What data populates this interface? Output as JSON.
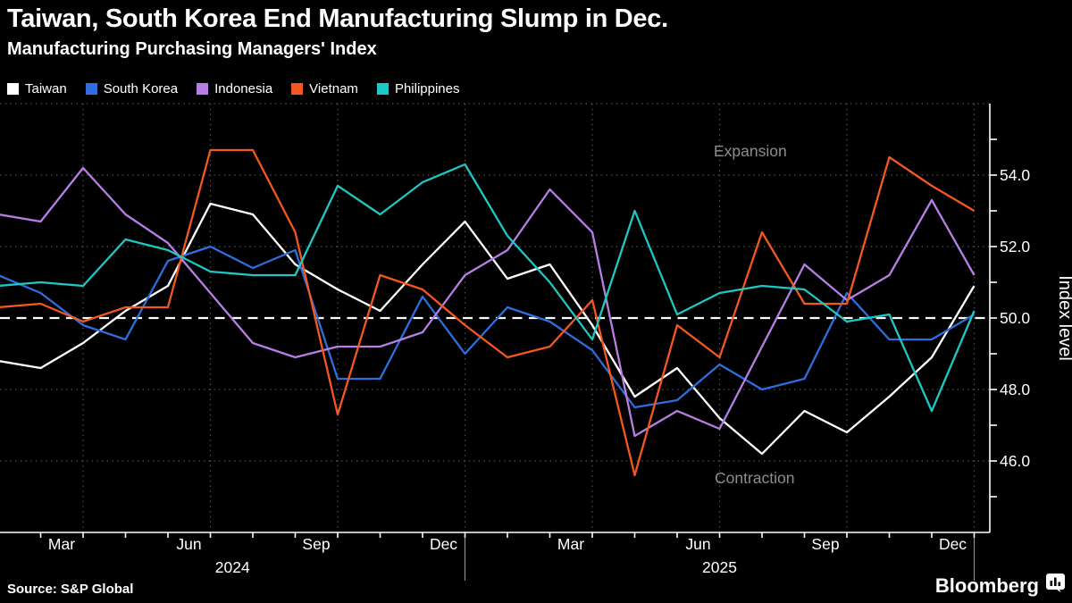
{
  "header": {
    "title": "Taiwan, South Korea End Manufacturing Slump in Dec.",
    "subtitle": "Manufacturing Purchasing Managers' Index"
  },
  "legend": {
    "items": [
      {
        "label": "Taiwan",
        "color": "#FFFFFF"
      },
      {
        "label": "South Korea",
        "color": "#2D6FDF"
      },
      {
        "label": "Indonesia",
        "color": "#B77FE6"
      },
      {
        "label": "Vietnam",
        "color": "#F4581E"
      },
      {
        "label": "Philippines",
        "color": "#1FC8C4"
      }
    ]
  },
  "chart_data": {
    "type": "line",
    "title": "Taiwan, South Korea End Manufacturing Slump in Dec.",
    "subtitle": "Manufacturing Purchasing Managers' Index",
    "ylabel": "Index level",
    "xlabel": "",
    "ylim": [
      44,
      56
    ],
    "grid": "dotted",
    "reference_line_value": 50,
    "categories": [
      "Jan 2024",
      "Feb 2024",
      "Mar 2024",
      "Apr 2024",
      "May 2024",
      "Jun 2024",
      "Jul 2024",
      "Aug 2024",
      "Sep 2024",
      "Oct 2024",
      "Nov 2024",
      "Dec 2024",
      "Jan 2025",
      "Feb 2025",
      "Mar 2025",
      "Apr 2025",
      "May 2025",
      "Jun 2025",
      "Jul 2025",
      "Aug 2025",
      "Sep 2025",
      "Oct 2025",
      "Nov 2025",
      "Dec 2025"
    ],
    "series": [
      {
        "name": "Taiwan",
        "color": "#FFFFFF",
        "values": [
          48.8,
          48.6,
          49.3,
          50.2,
          50.9,
          53.2,
          52.9,
          51.5,
          50.8,
          50.2,
          51.5,
          52.7,
          51.1,
          51.5,
          49.8,
          47.8,
          48.6,
          47.2,
          46.2,
          47.4,
          46.8,
          47.8,
          48.9,
          50.9
        ]
      },
      {
        "name": "South Korea",
        "color": "#2D6FDF",
        "values": [
          51.2,
          50.7,
          49.8,
          49.4,
          51.6,
          52.0,
          51.4,
          51.9,
          48.3,
          48.3,
          50.6,
          49.0,
          50.3,
          49.9,
          49.1,
          47.5,
          47.7,
          48.7,
          48.0,
          48.3,
          50.7,
          49.4,
          49.4,
          50.1
        ]
      },
      {
        "name": "Indonesia",
        "color": "#B77FE6",
        "values": [
          52.9,
          52.7,
          54.2,
          52.9,
          52.1,
          50.7,
          49.3,
          48.9,
          49.2,
          49.2,
          49.6,
          51.2,
          51.9,
          53.6,
          52.4,
          46.7,
          47.4,
          46.9,
          49.2,
          51.5,
          50.5,
          51.2,
          53.3,
          51.2
        ]
      },
      {
        "name": "Vietnam",
        "color": "#F4581E",
        "values": [
          50.3,
          50.4,
          49.9,
          50.3,
          50.3,
          54.7,
          54.7,
          52.4,
          47.3,
          51.2,
          50.8,
          49.8,
          48.9,
          49.2,
          50.5,
          45.6,
          49.8,
          48.9,
          52.4,
          50.4,
          50.4,
          54.5,
          53.7,
          53.0
        ]
      },
      {
        "name": "Philippines",
        "color": "#1FC8C4",
        "values": [
          50.9,
          51.0,
          50.9,
          52.2,
          51.9,
          51.3,
          51.2,
          51.2,
          53.7,
          52.9,
          53.8,
          54.3,
          52.3,
          51.0,
          49.4,
          53.0,
          50.1,
          50.7,
          50.9,
          50.8,
          49.9,
          50.1,
          47.4,
          50.2
        ]
      }
    ],
    "y_ticks": [
      {
        "value": 54,
        "label": "54.0"
      },
      {
        "value": 52,
        "label": "52.0"
      },
      {
        "value": 50,
        "label": "50.0"
      },
      {
        "value": 48,
        "label": "48.0"
      },
      {
        "value": 46,
        "label": "46.0"
      }
    ],
    "y_minor_tick_values": [
      45,
      46,
      47,
      48,
      49,
      50,
      51,
      52,
      53,
      54,
      55
    ],
    "grid_y_values": [
      46,
      48,
      52,
      54,
      56
    ],
    "x_ticks": [
      {
        "index": 2,
        "label": "Mar"
      },
      {
        "index": 5,
        "label": "Jun"
      },
      {
        "index": 8,
        "label": "Sep"
      },
      {
        "index": 11,
        "label": "Dec"
      },
      {
        "index": 14,
        "label": "Mar"
      },
      {
        "index": 17,
        "label": "Jun"
      },
      {
        "index": 20,
        "label": "Sep"
      },
      {
        "index": 23,
        "label": "Dec"
      }
    ],
    "year_labels": [
      "2024",
      "2025"
    ],
    "annotations": {
      "expansion": "Expansion",
      "contraction": "Contraction"
    },
    "legend_position": "top-left"
  },
  "footer": {
    "source": "Source: S&P Global",
    "brand": "Bloomberg"
  }
}
